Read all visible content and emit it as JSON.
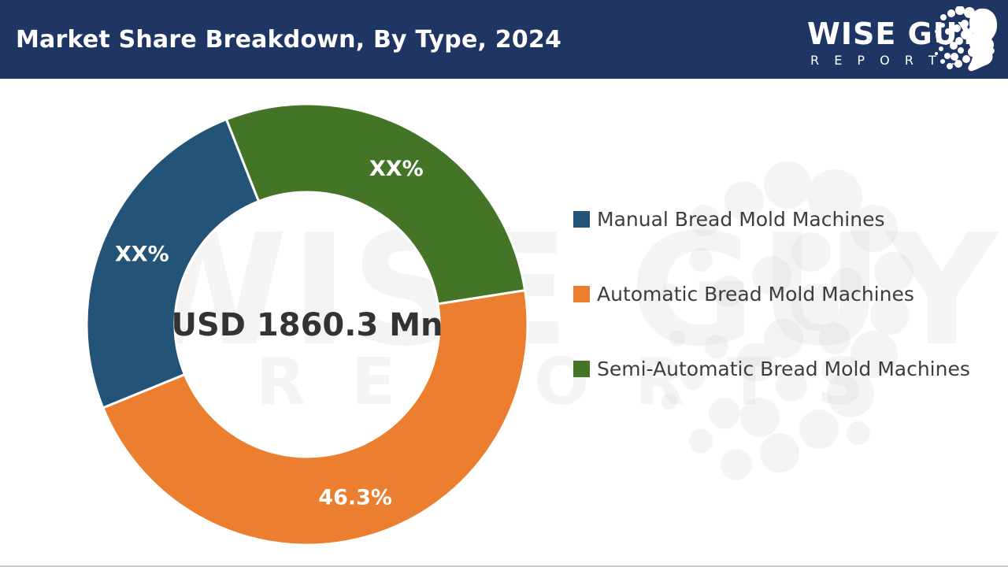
{
  "header": {
    "title": "Market Share Breakdown, By Type, 2024",
    "brand": {
      "line1": "WISE GUY",
      "line2": "R E P O R T S"
    }
  },
  "watermark": {
    "line1": "WISE GUY",
    "line2": "REPORTS"
  },
  "chart_data": {
    "type": "pie",
    "subtype": "donut",
    "title": "Market Share Breakdown, By Type, 2024",
    "center_label": "USD 1860.3 Mn",
    "start_angle_deg": -21.5,
    "segments": [
      {
        "name": "Semi-Automatic Bread Mold Machines",
        "value_pct": 28.5,
        "label": "XX%",
        "color": "#447426"
      },
      {
        "name": "Automatic Bread Mold Machines",
        "value_pct": 46.3,
        "label": "46.3%",
        "color": "#EB7E2F"
      },
      {
        "name": "Manual Bread Mold Machines",
        "value_pct": 25.2,
        "label": "XX%",
        "color": "#235377"
      }
    ],
    "legend": [
      {
        "label": "Manual Bread Mold Machines",
        "color": "#235377"
      },
      {
        "label": "Automatic Bread Mold Machines",
        "color": "#EB7E2F"
      },
      {
        "label": "Semi-Automatic Bread Mold Machines",
        "color": "#447426"
      }
    ],
    "legend_position": "right"
  },
  "colors": {
    "header_bg": "#1F3564",
    "center_text": "#333333",
    "legend_text": "#3D3D3D",
    "separator": "#FFFFFF"
  }
}
